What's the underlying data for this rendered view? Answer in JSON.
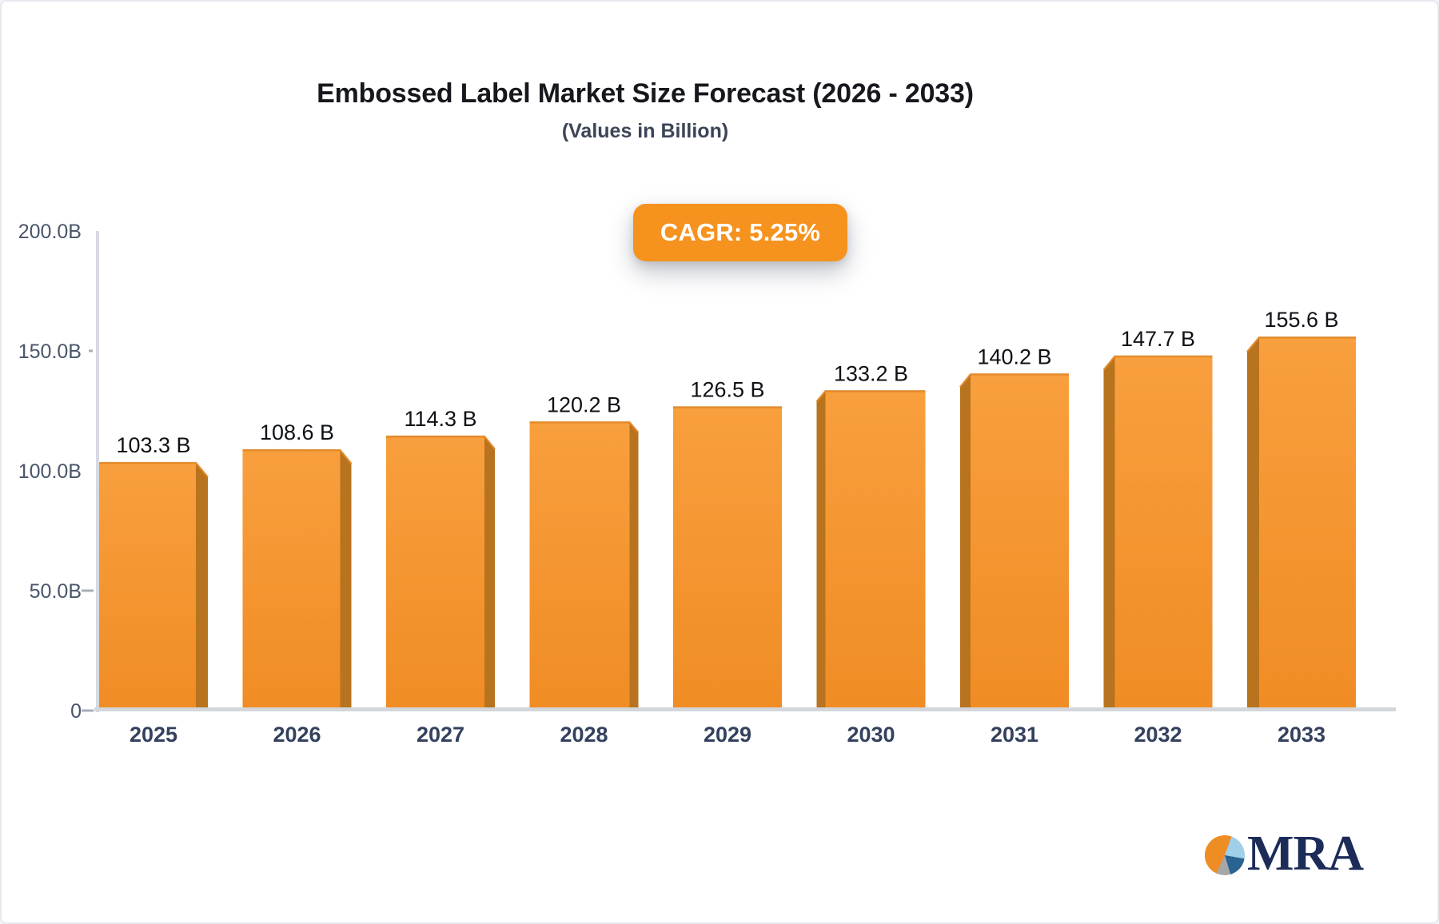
{
  "header": {
    "title": "Embossed Label Market Size Forecast (2026 - 2033)",
    "subtitle": "(Values in Billion)",
    "badge_label": "CAGR: 5.25%"
  },
  "colors": {
    "badge_bg": "#F6921E",
    "bar_face_top": "#F89F3E",
    "bar_face_bottom": "#F08C24",
    "bar_side": "#B8731E",
    "bar_top_edge": "#DF831F",
    "axis_line": "#D7DAE0",
    "baseline": "#D3D6DB",
    "tick_dash": "#A8AEB9",
    "value_label": "#0E1116",
    "year_label": "#33415E",
    "y_tick_label": "#49556A"
  },
  "chart_data": {
    "type": "bar",
    "title": "Embossed Label Market Size Forecast (2026 - 2033)",
    "subtitle": "(Values in Billion)",
    "annotation": "CAGR: 5.25%",
    "categories": [
      "2025",
      "2026",
      "2027",
      "2028",
      "2029",
      "2030",
      "2031",
      "2032",
      "2033"
    ],
    "values": [
      103.3,
      108.6,
      114.3,
      120.2,
      126.5,
      133.2,
      140.2,
      147.7,
      155.6
    ],
    "value_labels": [
      "103.3 B",
      "108.6 B",
      "114.3 B",
      "120.2 B",
      "126.5 B",
      "133.2 B",
      "140.2 B",
      "147.7 B",
      "155.6 B"
    ],
    "unit": "Billion",
    "xlabel": "",
    "ylabel": "",
    "ylim": [
      0,
      200
    ],
    "grid": false,
    "legend": "none",
    "y_ticks": [
      {
        "label": "200.0B",
        "value": 200,
        "tick": "none"
      },
      {
        "label": "150.0B",
        "value": 150,
        "tick": "dot"
      },
      {
        "label": "100.0B",
        "value": 100,
        "tick": "none"
      },
      {
        "label": "50.0B",
        "value": 50,
        "tick": "dash"
      },
      {
        "label": "0",
        "value": 0,
        "tick": "dash"
      }
    ]
  },
  "logo": {
    "text": "MRA",
    "text_color": "#1C2B58",
    "pie_colors": {
      "orange": "#EF8D25",
      "light_blue": "#9FCFE9",
      "blue": "#2A6391",
      "gray": "#A7A6A8"
    }
  }
}
